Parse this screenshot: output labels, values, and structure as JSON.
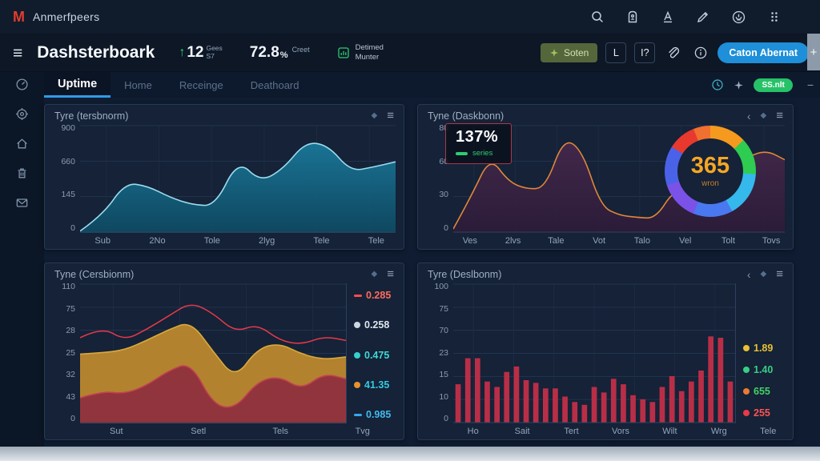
{
  "topbar": {
    "logo": "M",
    "brand": "Anmerfpeers",
    "icons": [
      "search",
      "archive-doc",
      "font",
      "pencil",
      "badge-circle",
      "apps-grid"
    ]
  },
  "navbar": {
    "title": "Dashsterboark",
    "stat1": {
      "arrow": "↑",
      "value": "12",
      "sub_top": "Gees",
      "sub_bottom": "S7"
    },
    "stat2": {
      "value": "72.8",
      "unit": "%",
      "label": "Creet"
    },
    "stat3": {
      "line1": "Detimed",
      "line2": "Munter"
    },
    "buttons": {
      "soten": "Soten",
      "l": "L",
      "ip": "I?",
      "primary": "Caton Abernat"
    },
    "plus": "+"
  },
  "tabbar": {
    "tabs": [
      {
        "label": "Uptime",
        "active": true
      },
      {
        "label": "Home",
        "active": false
      },
      {
        "label": "Receinge",
        "active": false
      },
      {
        "label": "Deathoard",
        "active": false
      }
    ],
    "badge": "SS.nlt",
    "minus": "−"
  },
  "sidebar": {
    "icons": [
      "gauge",
      "settings",
      "home",
      "trash",
      "mail"
    ]
  },
  "panels": [
    {
      "title": "Tyre (tersbnorm)"
    },
    {
      "title": "Tyne (Daskbonn)"
    },
    {
      "title": "Tyne (Cersbionm)"
    },
    {
      "title": "Tyre (Deslbonm)"
    }
  ],
  "chart_data": [
    {
      "type": "area",
      "title": "Tyre (tersbnorm)",
      "yticks": [
        "900",
        "660",
        "145",
        "0"
      ],
      "xlabels": [
        "Sub",
        "2No",
        "Tole",
        "2lyg",
        "Tele",
        "Tele"
      ],
      "values_pct": [
        1,
        16,
        47,
        44,
        33,
        26,
        25,
        69,
        48,
        60,
        86,
        83,
        58,
        62,
        67
      ],
      "ylim_top": 900,
      "fill": "#1a7a9c",
      "fill2": "#0e4a63",
      "stroke": "#9adcee",
      "grid": true
    },
    {
      "type": "area",
      "title": "Tyne (Daskbonn)",
      "yticks": [
        "80",
        "60",
        "30",
        "0"
      ],
      "xlabels": [
        "Ves",
        "2lvs",
        "Tale",
        "Vot",
        "Talo",
        "Vel",
        "Tolt",
        "Tovs"
      ],
      "values_pct": [
        3,
        35,
        72,
        48,
        41,
        42,
        90,
        78,
        25,
        16,
        14,
        13,
        41,
        35,
        65,
        60,
        72,
        78,
        69
      ],
      "ylim_top": 80,
      "fill": "#46284c",
      "fill2": "#2c1b38",
      "stroke": "#e0873a",
      "grid": true,
      "stat_box": {
        "value": "137%",
        "series_label": "series",
        "series_color": "#2ecc71"
      },
      "donut": {
        "value": "365",
        "label": "wron",
        "segments": [
          [
            "#f59a1e",
            13
          ],
          [
            "#2ecc51",
            26
          ],
          [
            "#35b8ec",
            42
          ],
          [
            "#4a78f0",
            56
          ],
          [
            "#7a52e8",
            70
          ],
          [
            "#4a62e8",
            84
          ],
          [
            "#e8392e",
            94
          ],
          [
            "#f07030",
            100
          ]
        ]
      }
    },
    {
      "type": "multi",
      "title": "Tyne (Cersbionm)",
      "yticks": [
        "110",
        "75",
        "28",
        "25",
        "32",
        "43",
        "0"
      ],
      "xlabels": [
        "Sut",
        "Setl",
        "Tels",
        "Tvg"
      ],
      "layers": [
        {
          "kind": "area",
          "values_pct": [
            50,
            51,
            53,
            60,
            68,
            74,
            52,
            32,
            54,
            58,
            50,
            46,
            48
          ],
          "fill": "#c08a2e",
          "stroke": "#d9a93c"
        },
        {
          "kind": "area",
          "values_pct": [
            18,
            23,
            21,
            27,
            38,
            44,
            13,
            10,
            30,
            34,
            24,
            36,
            32
          ],
          "fill": "#8e2e3e",
          "stroke": "#c24250"
        },
        {
          "kind": "line",
          "values_pct": [
            62,
            70,
            60,
            68,
            78,
            88,
            80,
            66,
            72,
            60,
            57,
            63,
            60
          ],
          "stroke": "#e8394a"
        }
      ],
      "grid": true,
      "legend": [
        {
          "marker": "dash",
          "color": "#ff4d4d",
          "value": "0.285",
          "text": "#ff6b5e"
        },
        {
          "marker": "dot",
          "color": "#cfd6de",
          "value": "0.258",
          "text": "#dfe6ee"
        },
        {
          "marker": "dot",
          "color": "#35d0cc",
          "value": "0.475",
          "text": "#3fd8d4"
        },
        {
          "marker": "dot",
          "color": "#e8912e",
          "value": "41.35",
          "text": "#35c9e0"
        },
        {
          "marker": "dash",
          "color": "#38a8e8",
          "value": "0.985",
          "text": "#41b9ec"
        }
      ]
    },
    {
      "type": "bar",
      "title": "Tyre (Deslbonm)",
      "yticks": [
        "100",
        "75",
        "70",
        "23",
        "15",
        "10",
        "0"
      ],
      "xlabels": [
        "Ho",
        "Sait",
        "Tert",
        "Vors",
        "Wilt",
        "Wrg",
        "Tele"
      ],
      "values_pct": [
        28,
        47,
        47,
        30,
        26,
        37,
        41,
        31,
        29,
        25,
        25,
        19,
        15,
        13,
        26,
        22,
        32,
        28,
        20,
        17,
        15,
        26,
        34,
        23,
        30,
        38,
        63,
        62,
        30
      ],
      "bar_color": "#b92e47",
      "grid": true,
      "legend": [
        {
          "marker": "dot",
          "color": "#e8c033",
          "value": "1.89",
          "text": "#e8c033"
        },
        {
          "marker": "dot",
          "color": "#35cf85",
          "value": "1.40",
          "text": "#35cf85"
        },
        {
          "marker": "dot",
          "color": "#e87a33",
          "value": "655",
          "text": "#44cf6a"
        },
        {
          "marker": "dot",
          "color": "#e83a47",
          "value": "255",
          "text": "#ff5252"
        }
      ]
    }
  ],
  "colors": {
    "accent_blue": "#1e8fd8",
    "accent_green": "#2ecc71",
    "panel_bg": "#152237",
    "page_bg": "#0f1c31",
    "alert_red": "#a8394a"
  }
}
